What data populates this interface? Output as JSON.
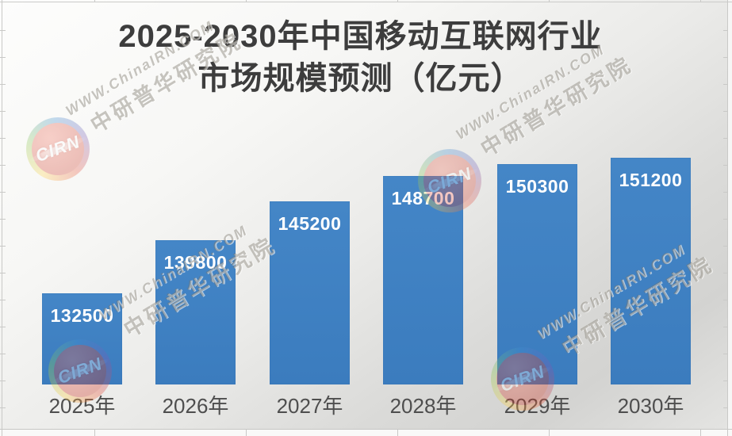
{
  "title": {
    "line1": "2025-2030年中国移动互联网行业",
    "line2": "市场规模预测（亿元）"
  },
  "chart_data": {
    "type": "bar",
    "title": "2025-2030年中国移动互联网行业市场规模预测（亿元）",
    "unit": "亿元",
    "categories": [
      "2025年",
      "2026年",
      "2027年",
      "2028年",
      "2029年",
      "2030年"
    ],
    "values": [
      132500,
      139800,
      145200,
      148700,
      150300,
      151200
    ],
    "xlabel": "",
    "ylabel": "",
    "ylim": [
      119850,
      151200
    ],
    "axis_hidden": true,
    "grid": false,
    "legend": false,
    "bar_color": "#3b7cbe",
    "bar_color_top": "#4486c7",
    "value_label_color": "#ffffff"
  },
  "watermark": {
    "site_text": "WWW.ChinaIRN.COM",
    "org_text": "中研普华研究院",
    "logo_text": "CIRN"
  },
  "colors": {
    "title_text": "#3d3d3d",
    "category_text": "#4e4e4e",
    "gridline": "#c9c9c7"
  }
}
